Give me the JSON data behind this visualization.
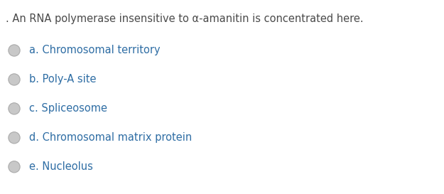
{
  "title": ". An RNA polymerase insensitive to α-amanitin is concentrated here.",
  "title_color": "#4a4a4a",
  "title_fontsize": 10.5,
  "title_fontweight": "normal",
  "options": [
    "a. Chromosomal territory",
    "b. Poly-A site",
    "c. Spliceosome",
    "d. Chromosomal matrix protein",
    "e. Nucleolus"
  ],
  "option_color": "#2e6da4",
  "option_fontsize": 10.5,
  "option_fontweight": "normal",
  "radio_facecolor": "#c8c8c8",
  "radio_edge_color": "#aaaaaa",
  "background_color": "#ffffff",
  "fig_width": 6.25,
  "fig_height": 2.73,
  "dpi": 100
}
